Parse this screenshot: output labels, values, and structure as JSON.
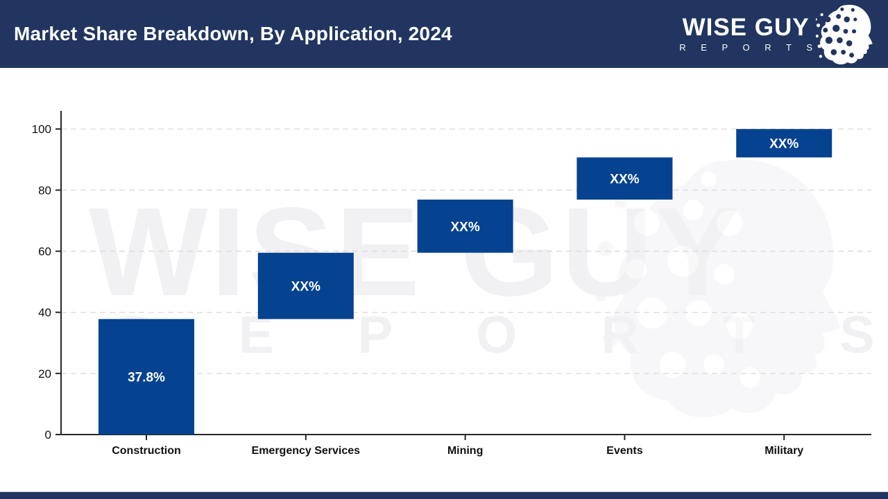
{
  "header": {
    "title": "Market Share Breakdown, By Application, 2024",
    "logo": {
      "line1": "WISE GUY",
      "line2": "R E P O R T S",
      "alt": "Wise Guy Reports logo"
    }
  },
  "watermark": {
    "line1": "WISE GUY",
    "line2": "R E P O R T S"
  },
  "colors": {
    "header_bg": "#213560",
    "bar": "#05428f",
    "bar_label": "#ffffff",
    "grid": "#dcdcdc",
    "axis": "#262626",
    "tick_label": "#111111",
    "watermark": "#f1f1f4"
  },
  "chart_data": {
    "type": "bar",
    "subtype": "waterfall",
    "title": "Market Share Breakdown, By Application, 2024",
    "categories": [
      "Construction",
      "Emergency Services",
      "Mining",
      "Events",
      "Military"
    ],
    "segments": [
      {
        "category": "Construction",
        "start": 0,
        "end": 37.8,
        "label": "37.8%"
      },
      {
        "category": "Emergency Services",
        "start": 37.8,
        "end": 59.5,
        "label": "XX%"
      },
      {
        "category": "Mining",
        "start": 59.5,
        "end": 76.9,
        "label": "XX%"
      },
      {
        "category": "Events",
        "start": 76.9,
        "end": 90.7,
        "label": "XX%"
      },
      {
        "category": "Military",
        "start": 90.7,
        "end": 100,
        "label": "XX%"
      }
    ],
    "y_ticks": [
      0,
      20,
      40,
      60,
      80,
      100
    ],
    "ylim": [
      0,
      105
    ],
    "xlabel": "",
    "ylabel": "",
    "legend": "none",
    "grid": "horizontal-dashed"
  }
}
